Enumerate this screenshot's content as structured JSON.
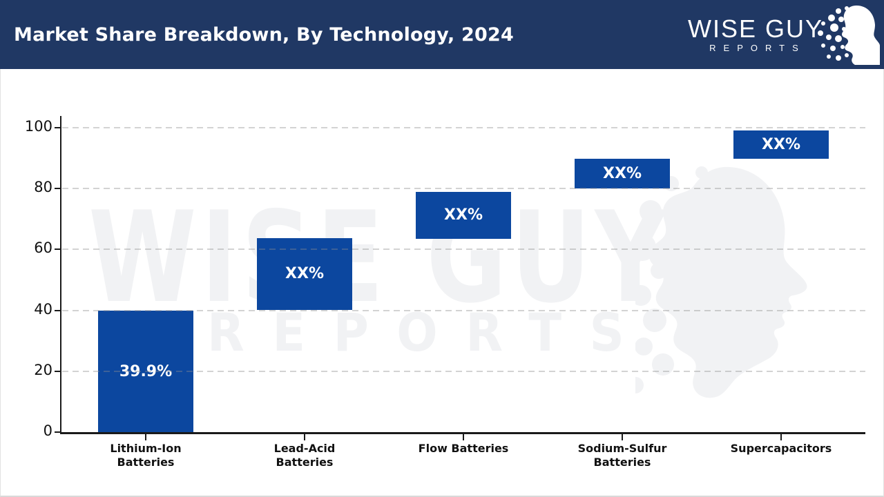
{
  "header": {
    "title": "Market Share Breakdown, By Technology, 2024",
    "logo": {
      "primary": "WISE GUY",
      "secondary": "REPORTS"
    }
  },
  "watermark": {
    "primary": "WISE GUY",
    "secondary": "REPORTS"
  },
  "colors": {
    "header_bg": "#203864",
    "bar": "#0c479f",
    "axis": "#1a1a1a",
    "gridline": "#d9d9d9",
    "bar_label": "#ffffff",
    "watermark": "#f1f2f4"
  },
  "chart_data": {
    "type": "bar",
    "variant": "waterfall",
    "title": "Market Share Breakdown, By Technology, 2024",
    "xlabel": "",
    "ylabel": "",
    "ylim": [
      0,
      105
    ],
    "yticks": [
      0,
      20,
      40,
      60,
      80,
      100
    ],
    "grid": {
      "horizontal": true,
      "style": "dashed"
    },
    "legend": "none",
    "bar_color": "#0c479f",
    "categories": [
      "Lithium-Ion\nBatteries",
      "Lead-Acid\nBatteries",
      "Flow Batteries",
      "Sodium-Sulfur\nBatteries",
      "Supercapacitors"
    ],
    "segments": [
      {
        "category": "Lithium-Ion Batteries",
        "start": 0,
        "end": 39.9,
        "label": "39.9%"
      },
      {
        "category": "Lead-Acid Batteries",
        "start": 40.2,
        "end": 63.7,
        "label": "XX%"
      },
      {
        "category": "Flow Batteries",
        "start": 63.5,
        "end": 79.0,
        "label": "XX%"
      },
      {
        "category": "Sodium-Sulfur Batteries",
        "start": 80.1,
        "end": 89.7,
        "label": "XX%"
      },
      {
        "category": "Supercapacitors",
        "start": 89.7,
        "end": 99.2,
        "label": "XX%"
      }
    ]
  }
}
